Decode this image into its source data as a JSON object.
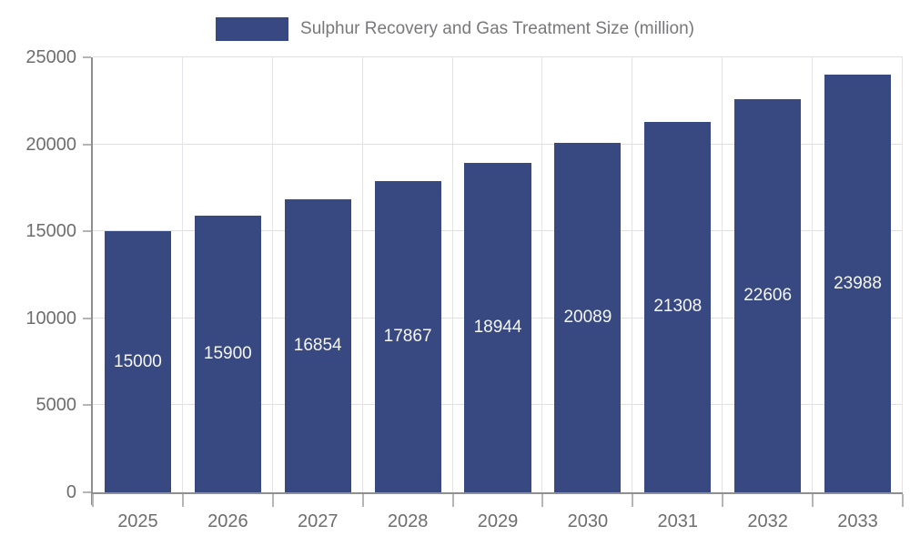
{
  "legend": {
    "label": "Sulphur Recovery and Gas Treatment Size (million)"
  },
  "chart_data": {
    "type": "bar",
    "title": "",
    "xlabel": "",
    "ylabel": "",
    "categories": [
      "2025",
      "2026",
      "2027",
      "2028",
      "2029",
      "2030",
      "2031",
      "2032",
      "2033"
    ],
    "series": [
      {
        "name": "Sulphur Recovery and Gas Treatment Size (million)",
        "values": [
          15000,
          15900,
          16854,
          17867,
          18944,
          20089,
          21308,
          22606,
          23988
        ]
      }
    ],
    "value_labels": [
      "15000",
      "15900",
      "16854",
      "17867",
      "18944",
      "20089",
      "21308",
      "22606",
      "23988"
    ],
    "value_label_position": "inside-middle",
    "ylim": [
      0,
      25000
    ],
    "yticks": [
      0,
      5000,
      10000,
      15000,
      20000,
      25000
    ],
    "ytick_labels": [
      "0",
      "5000",
      "10000",
      "15000",
      "20000",
      "25000"
    ],
    "grid": "horizontal and vertical light gray lines",
    "legend_position": "top-center"
  },
  "colors": {
    "background": "#ffffff",
    "bar": "#374980",
    "value_label": "#f7f7f7",
    "legend_text": "#78787c",
    "tick_label": "#6e6e6e",
    "axis": "#8f8f8f",
    "tick": "#b5b5b5",
    "gridline_horizontal": "#e0e0e0",
    "gridline_vertical": "#e3e3e9"
  }
}
